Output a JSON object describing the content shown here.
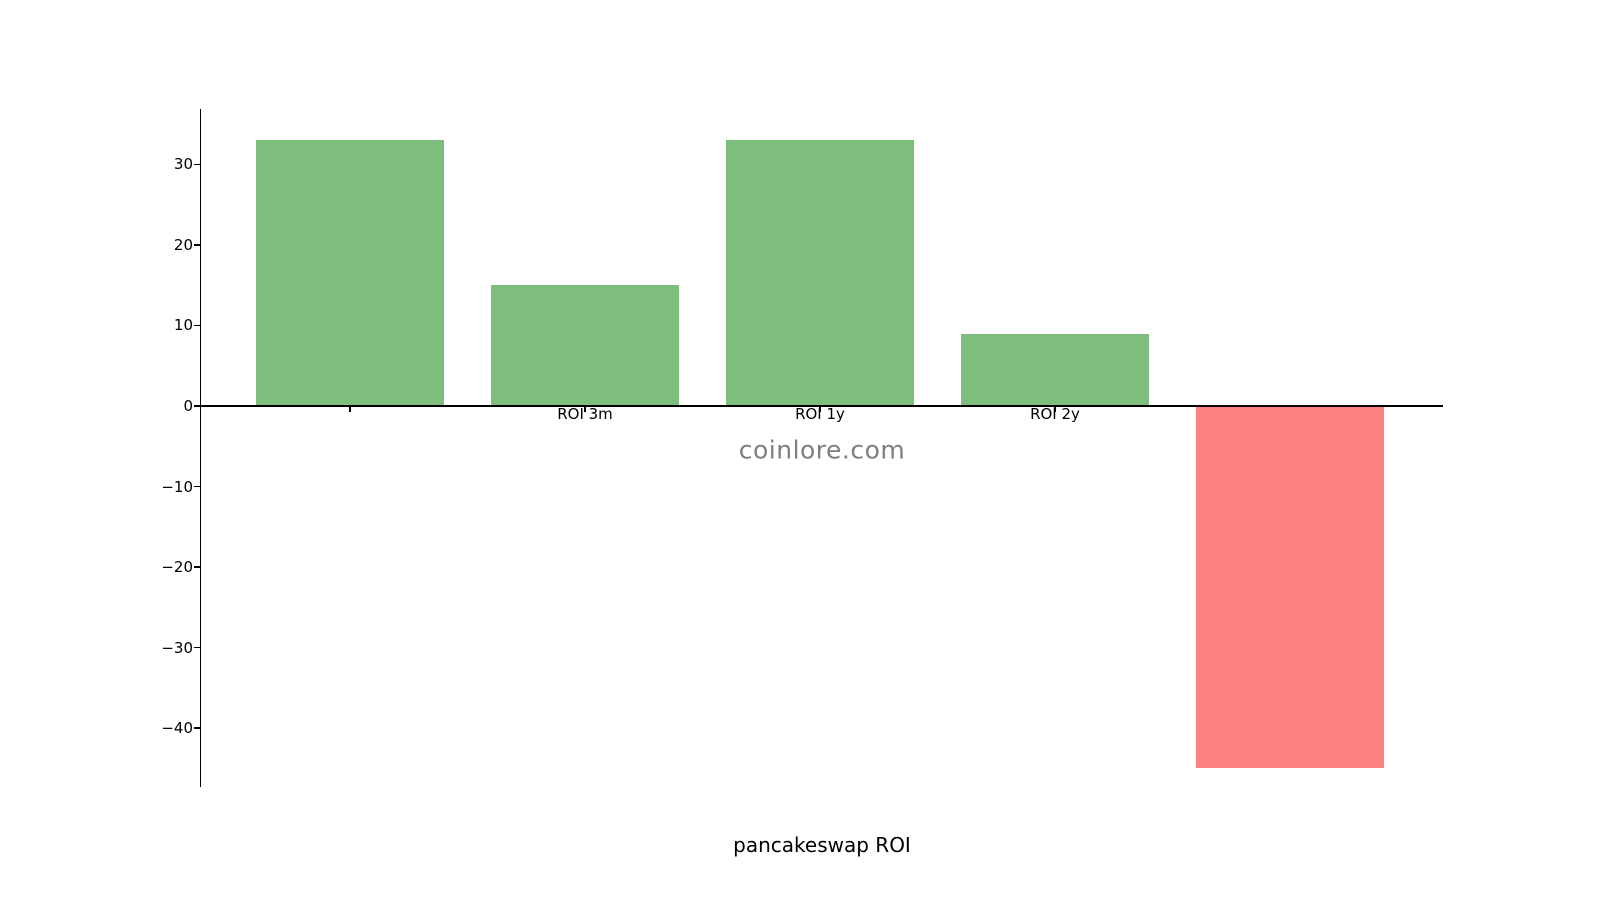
{
  "watermark": {
    "text": "coinlore.com",
    "color": "#7f7f7f"
  },
  "chart_data": {
    "type": "bar",
    "title": "pancakeswap ROI",
    "xlabel": "pancakeswap ROI",
    "ylabel": "",
    "categories": [
      "",
      "ROI 3m",
      "ROI 1y",
      "ROI 2y",
      ""
    ],
    "values": [
      33,
      15,
      33,
      9,
      -45
    ],
    "yticks": [
      30,
      20,
      10,
      0,
      -10,
      -20,
      -30,
      -40
    ],
    "ytick_labels": [
      "30",
      "20",
      "10",
      "0",
      "−10",
      "−20",
      "−30",
      "−40"
    ],
    "ylim": [
      -47.3,
      36.9
    ],
    "grid": false,
    "legend": "none",
    "bar_color_positive": "#7dbe7d",
    "bar_color_negative": "#fe8181",
    "axis_color": "#000000",
    "tick_label_color": "#000000"
  }
}
